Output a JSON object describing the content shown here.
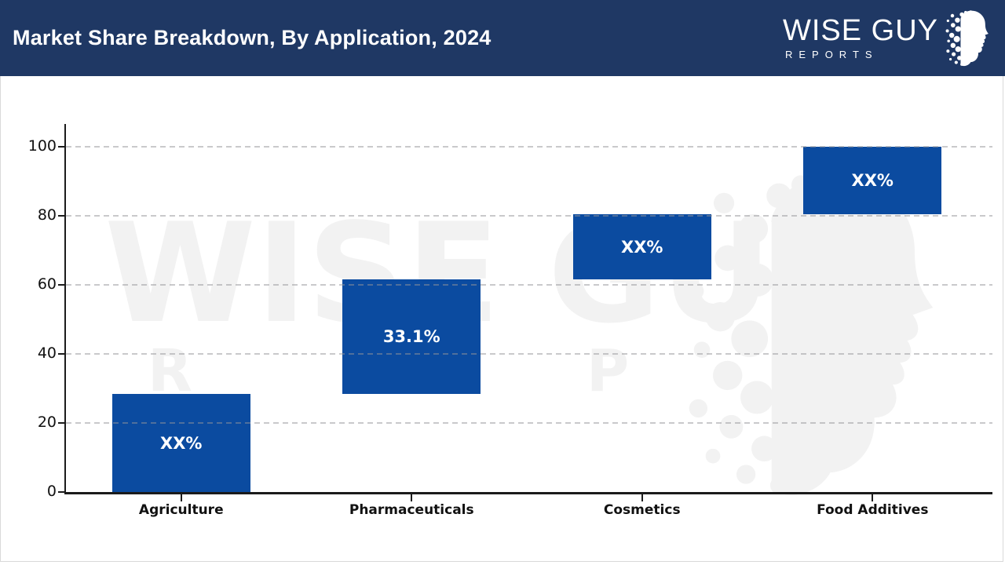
{
  "header": {
    "title": "Market Share Breakdown, By Application, 2024",
    "logo": {
      "wordmark": "WISE GUY",
      "subtext": "REPORTS"
    },
    "bg_color": "#1F3864"
  },
  "watermark": {
    "wordmark": "WISE GUY",
    "subtext": "R E P O R T S",
    "color": "#f2f2f2"
  },
  "chart_data": {
    "type": "bar",
    "variant": "waterfall-breakdown",
    "title": "Market Share Breakdown, By Application, 2024",
    "categories": [
      "Agriculture",
      "Pharmaceuticals",
      "Cosmetics",
      "Food Additives"
    ],
    "segments": [
      {
        "category": "Agriculture",
        "start": 0,
        "end": 28.4,
        "label": "XX%"
      },
      {
        "category": "Pharmaceuticals",
        "start": 28.4,
        "end": 61.5,
        "label": "33.1%"
      },
      {
        "category": "Cosmetics",
        "start": 61.5,
        "end": 80.4,
        "label": "XX%"
      },
      {
        "category": "Food Additives",
        "start": 80.4,
        "end": 100,
        "label": "XX%"
      }
    ],
    "ylim": [
      0,
      100
    ],
    "yticks": [
      0,
      20,
      40,
      60,
      80,
      100
    ],
    "grid": "horizontal-dashed",
    "legend": "none",
    "bar_color": "#0B4BA0",
    "bar_label_color": "#ffffff",
    "axis_color": "#1b1b1b"
  }
}
